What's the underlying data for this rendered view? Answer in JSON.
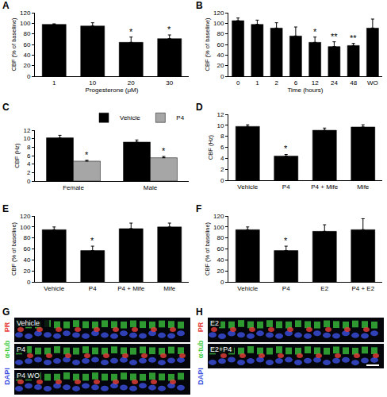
{
  "chart_data": [
    {
      "panel": "A",
      "type": "bar",
      "x_label": "Progesterone (μM)",
      "y_label": "CBF (% of baseline)",
      "categories": [
        "1",
        "10",
        "20",
        "30"
      ],
      "values": [
        98,
        95,
        64,
        71
      ],
      "errors": [
        1,
        6,
        10,
        7
      ],
      "significance": [
        null,
        null,
        "*",
        "*"
      ],
      "color": "#000000",
      "ylim": [
        0,
        120
      ],
      "yticks": [
        0,
        20,
        40,
        60,
        80,
        100,
        120
      ],
      "grid": false
    },
    {
      "panel": "B",
      "type": "bar",
      "x_label": "Time (hours)",
      "y_label": "CBF (% of baseline)",
      "categories": [
        "0",
        "1",
        "2",
        "6",
        "12",
        "24",
        "48",
        "WO"
      ],
      "values": [
        105,
        98,
        91,
        76,
        64,
        56,
        58,
        91
      ],
      "errors": [
        5,
        8,
        10,
        17,
        10,
        9,
        4,
        17
      ],
      "significance": [
        null,
        null,
        null,
        null,
        "*",
        "**",
        "**",
        null
      ],
      "color": "#000000",
      "ylim": [
        0,
        120
      ],
      "yticks": [
        0,
        20,
        40,
        60,
        80,
        100,
        120
      ],
      "grid": false
    },
    {
      "panel": "C",
      "type": "bar",
      "y_label": "CBF (Hz)",
      "categories": [
        "Female",
        "Male"
      ],
      "series": [
        {
          "name": "Vehicle",
          "color": "#000000",
          "values": [
            10.2,
            9.2
          ],
          "errors": [
            0.6,
            0.5
          ],
          "significance": [
            null,
            null
          ]
        },
        {
          "name": "P4",
          "color": "#a6a6a6",
          "values": [
            4.7,
            5.5
          ],
          "errors": [
            0.2,
            0.3
          ],
          "significance": [
            "*",
            "*"
          ]
        }
      ],
      "legend": "top",
      "ylim": [
        0,
        12
      ],
      "yticks": [
        0,
        2,
        4,
        6,
        8,
        10,
        12
      ],
      "grid": false
    },
    {
      "panel": "D",
      "type": "bar",
      "y_label": "CBF (Hz)",
      "categories": [
        "Vehicle",
        "P4",
        "P4 + Mife",
        "Mife"
      ],
      "values": [
        9.8,
        4.4,
        9.1,
        9.7
      ],
      "errors": [
        0.3,
        0.3,
        0.4,
        0.4
      ],
      "significance": [
        null,
        "*",
        null,
        null
      ],
      "color": "#000000",
      "ylim": [
        0,
        12
      ],
      "yticks": [
        0,
        2,
        4,
        6,
        8,
        10,
        12
      ],
      "grid": false
    },
    {
      "panel": "E",
      "type": "bar",
      "y_label": "CBF (% of baseline)",
      "categories": [
        "Vehicle",
        "P4",
        "P4 + Mife",
        "Mife"
      ],
      "values": [
        95,
        57,
        97,
        100
      ],
      "errors": [
        5,
        8,
        10,
        7
      ],
      "significance": [
        null,
        "*",
        null,
        null
      ],
      "color": "#000000",
      "ylim": [
        0,
        120
      ],
      "yticks": [
        0,
        20,
        40,
        60,
        80,
        100,
        120
      ],
      "grid": false
    },
    {
      "panel": "F",
      "type": "bar",
      "y_label": "CBF (% of baseline)",
      "categories": [
        "Vehicle",
        "P4",
        "E2",
        "P4 + E2"
      ],
      "values": [
        95,
        57,
        92,
        95
      ],
      "errors": [
        5,
        8,
        12,
        20
      ],
      "significance": [
        null,
        "*",
        null,
        null
      ],
      "color": "#000000",
      "ylim": [
        0,
        120
      ],
      "yticks": [
        0,
        20,
        40,
        60,
        80,
        100,
        120
      ],
      "grid": false
    }
  ],
  "images": [
    {
      "panel": "G",
      "channels": [
        {
          "label": "PR",
          "color": "#e8403a"
        },
        {
          "label": "α-tub",
          "color": "#3ecb3e"
        },
        {
          "label": "DAPI",
          "color": "#3b4fe0"
        }
      ],
      "rows": [
        "Vehicle",
        "P4",
        "P4 WO"
      ]
    },
    {
      "panel": "H",
      "channels": [
        {
          "label": "PR",
          "color": "#e8403a"
        },
        {
          "label": "α-tub",
          "color": "#3ecb3e"
        },
        {
          "label": "DAPI",
          "color": "#3b4fe0"
        }
      ],
      "rows": [
        "E2",
        "E2+P4"
      ]
    }
  ]
}
